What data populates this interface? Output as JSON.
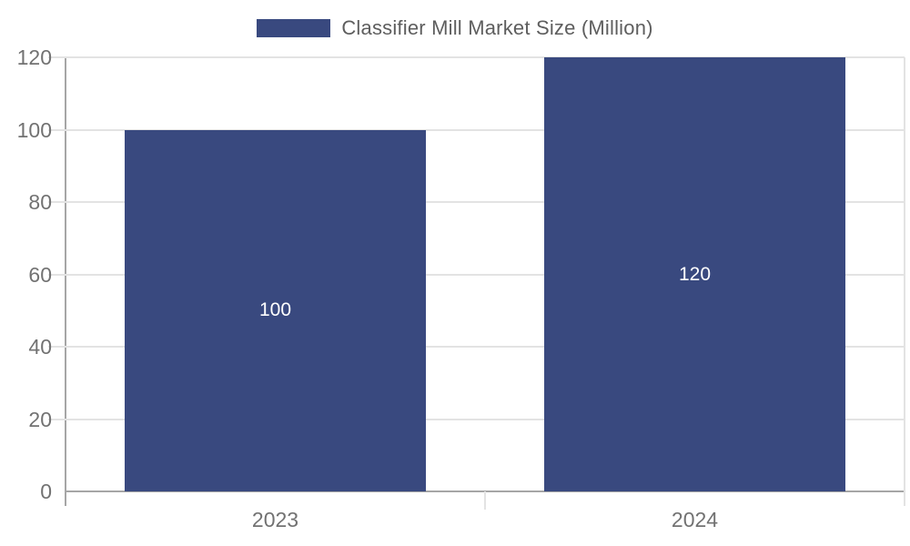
{
  "chart_data": {
    "type": "bar",
    "title": "Classifier Mill Market Size (Million)",
    "categories": [
      "2023",
      "2024"
    ],
    "values": [
      100,
      120
    ],
    "series": [
      {
        "name": "Classifier Mill Market Size (Million)",
        "values": [
          100,
          120
        ]
      }
    ],
    "bar_value_labels": [
      "100",
      "120"
    ],
    "xlabel": "",
    "ylabel": "",
    "ylim": [
      0,
      120
    ],
    "yticks": [
      0,
      20,
      40,
      60,
      80,
      100,
      120
    ],
    "grid": true,
    "legend_position": "top-center"
  },
  "legend": {
    "label": "Classifier Mill Market Size (Million)"
  },
  "colors": {
    "bar": "#39497F",
    "bar_label_text": "#ffffff",
    "axis_line": "#a6a6a6",
    "gridline": "#e3e3e3",
    "tick_label": "#727272",
    "legend_text": "#5e5e5e",
    "background": "#ffffff"
  }
}
